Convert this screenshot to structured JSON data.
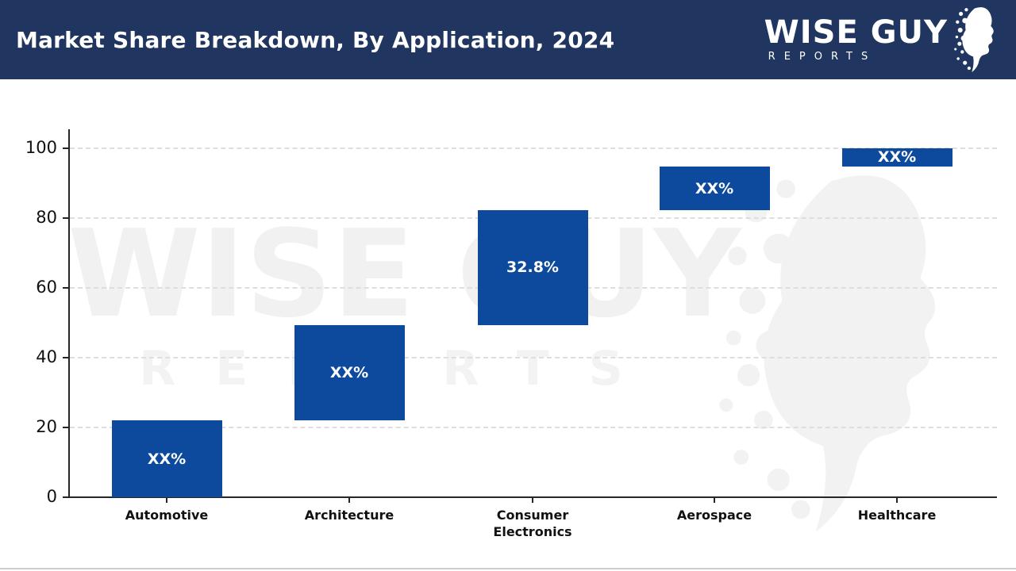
{
  "header": {
    "title": "Market Share Breakdown, By Application, 2024",
    "bg_color": "#20355f",
    "text_color": "#ffffff",
    "logo": {
      "line1": "WISE GUY",
      "line2": "REPORTS",
      "face_icon": "dotted-head-profile"
    }
  },
  "watermark": {
    "line1": "WISE GUY",
    "line2": "REPORTS",
    "face_icon": "dotted-head-profile"
  },
  "chart_data": {
    "type": "bar",
    "subtype": "floating-waterfall",
    "title": "Market Share Breakdown, By Application, 2024",
    "xlabel": "",
    "ylabel": "",
    "categories": [
      "Automotive",
      "Architecture",
      "Consumer Electronics",
      "Aerospace",
      "Healthcare"
    ],
    "segments": [
      {
        "category": "Automotive",
        "start": 0,
        "end": 22,
        "label": "XX%"
      },
      {
        "category": "Architecture",
        "start": 22,
        "end": 49.4,
        "label": "XX%"
      },
      {
        "category": "Consumer Electronics",
        "start": 49.4,
        "end": 82.2,
        "label": "32.8%",
        "value": 32.8
      },
      {
        "category": "Aerospace",
        "start": 82.2,
        "end": 94.8,
        "label": "XX%"
      },
      {
        "category": "Healthcare",
        "start": 94.8,
        "end": 100,
        "label": "XX%"
      }
    ],
    "yticks": [
      0,
      20,
      40,
      60,
      80,
      100
    ],
    "ylim": [
      0,
      106
    ],
    "grid": "horizontal-dashed",
    "legend": "none",
    "bar_color": "#0d4a9e",
    "bar_label_color": "#ffffff",
    "axis_color": "#262626",
    "gridline_color": "#dedede"
  }
}
